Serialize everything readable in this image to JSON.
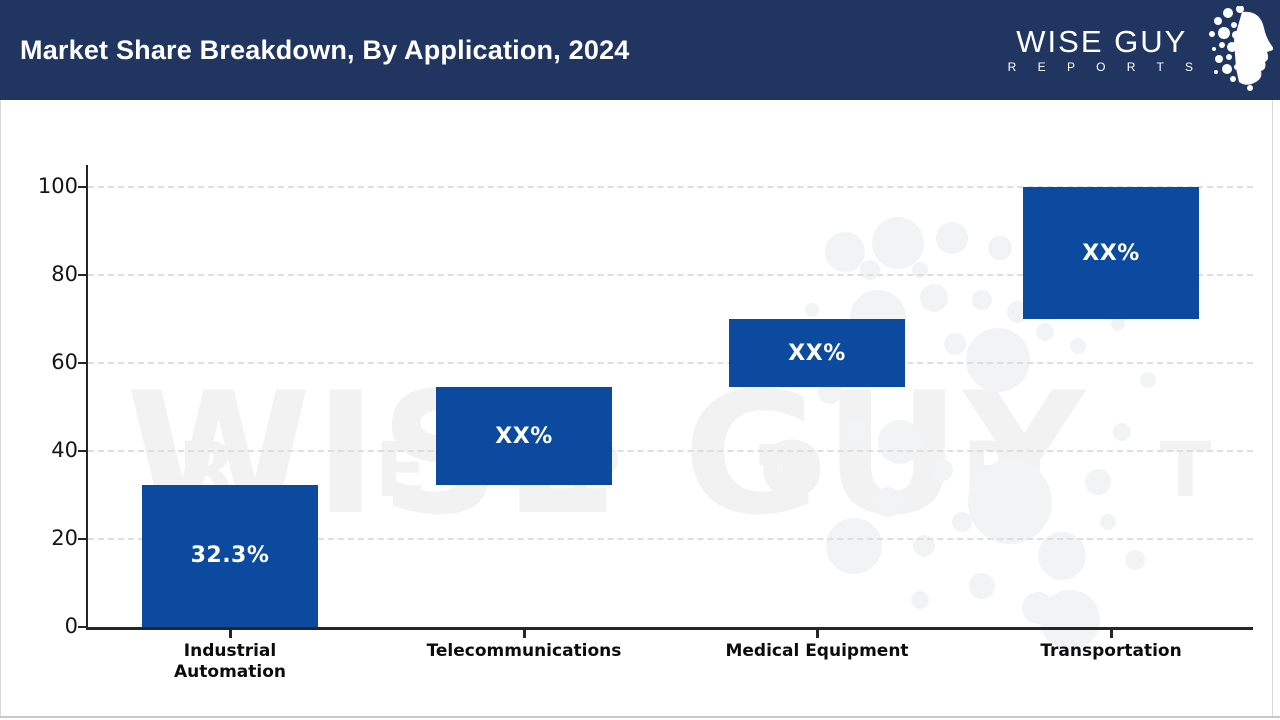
{
  "header": {
    "title": "Market Share Breakdown, By Application, 2024",
    "brand_line1": "WISE GUY",
    "brand_line2": "R E P O R T S"
  },
  "watermark": {
    "line1": "WISE GUY",
    "line2": "R E P O R T S"
  },
  "chart_data": {
    "type": "bar",
    "subtype": "waterfall-stacked-market-share",
    "title": "Market Share Breakdown, By Application, 2024",
    "categories": [
      "Industrial Automation",
      "Telecommunications",
      "Medical Equipment",
      "Transportation"
    ],
    "tick_label_lines": [
      [
        "Industrial",
        "Automation"
      ],
      [
        "Telecommunications"
      ],
      [
        "Medical Equipment"
      ],
      [
        "Transportation"
      ]
    ],
    "segments": [
      {
        "category": "Industrial Automation",
        "start": 0,
        "end": 32.3,
        "label": "32.3%"
      },
      {
        "category": "Telecommunications",
        "start": 32.3,
        "end": 54.5,
        "label": "XX%"
      },
      {
        "category": "Medical Equipment",
        "start": 54.5,
        "end": 70,
        "label": "XX%"
      },
      {
        "category": "Transportation",
        "start": 70,
        "end": 100,
        "label": "XX%"
      }
    ],
    "xlabel": "",
    "ylabel": "",
    "ylim": [
      0,
      100
    ],
    "yticks": [
      0,
      20,
      40,
      60,
      80,
      100
    ],
    "grid": "horizontal-dashed",
    "legend": "none",
    "bar_color": "#0b4a9e",
    "bar_label_color": "#ffffff"
  },
  "colors": {
    "header_bg": "#213561",
    "axis": "#262626",
    "gridline": "#dedede",
    "watermark": "#f2f2f2",
    "background": "#ffffff"
  }
}
